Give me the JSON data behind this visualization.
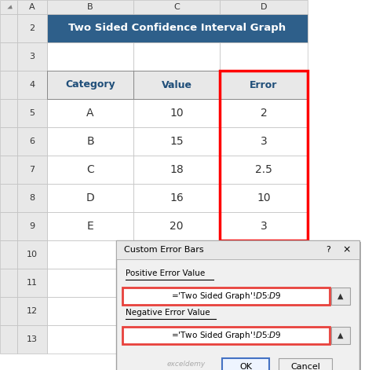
{
  "title": "Two Sided Confidence Interval Graph",
  "title_bg": "#2E5F8A",
  "title_color": "#FFFFFF",
  "header_bg": "#BDD7EE",
  "header_color": "#1F4E79",
  "col_headers": [
    "Category",
    "Value",
    "Error"
  ],
  "rows": [
    [
      "A",
      "10",
      "2"
    ],
    [
      "B",
      "15",
      "3"
    ],
    [
      "C",
      "18",
      "2.5"
    ],
    [
      "D",
      "16",
      "10"
    ],
    [
      "E",
      "20",
      "3"
    ]
  ],
  "excel_bg": "#FFFFFF",
  "row_header_bg": "#D9D9D9",
  "cell_bg": "#FFFFFF",
  "grid_color": "#BFBFBF",
  "dark_grid": "#888888",
  "error_highlight_color": "#FF0000",
  "dialog_title": "Custom Error Bars",
  "dialog_pos_label": "Positive Error Value",
  "dialog_neg_label": "Negative Error Value",
  "dialog_pos_value": "='Two Sided Graph'!$D$5:$D$9",
  "dialog_neg_value": "='Two Sided Graph'!$D$5:$D$9",
  "dialog_bg": "#F0F0F0",
  "dialog_border": "#A0A0A0",
  "input_highlight": "#E8413C",
  "ok_btn_border": "#4472C4",
  "ok_btn_bg": "#EEF4FF",
  "cancel_btn_bg": "#F0F0F0",
  "watermark": "exceldemy",
  "watermark_color": "#AAAAAA",
  "col_row_header_bg": "#E8E8E8",
  "triangle_color": "#808080"
}
